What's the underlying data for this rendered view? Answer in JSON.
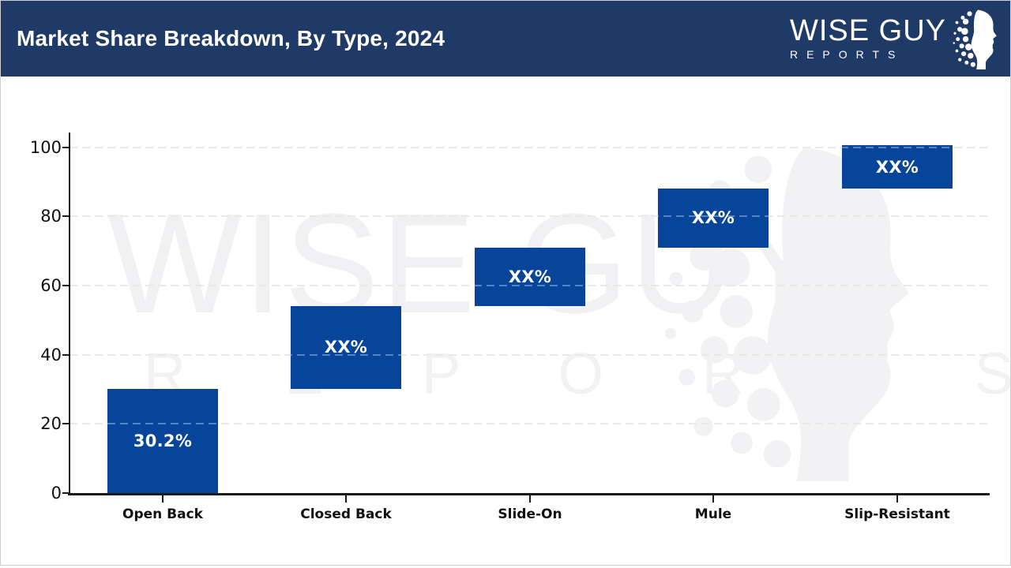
{
  "header": {
    "title": "Market Share Breakdown, By Type, 2024",
    "bg_color": "#203a68",
    "logo": {
      "line1": "WISE GUY",
      "line2": "REPORTS"
    }
  },
  "watermark": {
    "line1": "WISE GUY",
    "line2": "R E P O R T S"
  },
  "chart_data": {
    "type": "bar",
    "subtype": "waterfall",
    "title": "Market Share Breakdown, By Type, 2024",
    "categories": [
      "Open Back",
      "Closed Back",
      "Slide-On",
      "Mule",
      "Slip-Resistant"
    ],
    "bars": [
      {
        "category": "Open Back",
        "label": "30.2%",
        "start": 0,
        "end": 30.2
      },
      {
        "category": "Closed Back",
        "label": "XX%",
        "start": 30.2,
        "end": 54
      },
      {
        "category": "Slide-On",
        "label": "XX%",
        "start": 54,
        "end": 71
      },
      {
        "category": "Mule",
        "label": "XX%",
        "start": 71,
        "end": 88
      },
      {
        "category": "Slip-Resistant",
        "label": "XX%",
        "start": 88,
        "end": 100.5
      }
    ],
    "xlabel": "",
    "ylabel": "",
    "y_ticks": [
      0,
      20,
      40,
      60,
      80,
      100
    ],
    "ylim": [
      0,
      104
    ],
    "grid": "horizontal-dashed",
    "legend": "none",
    "bar_color": "#07459a",
    "bar_label_color": "#ffffff",
    "axis_color": "#1a1a1a",
    "grid_color": "#dedede"
  }
}
